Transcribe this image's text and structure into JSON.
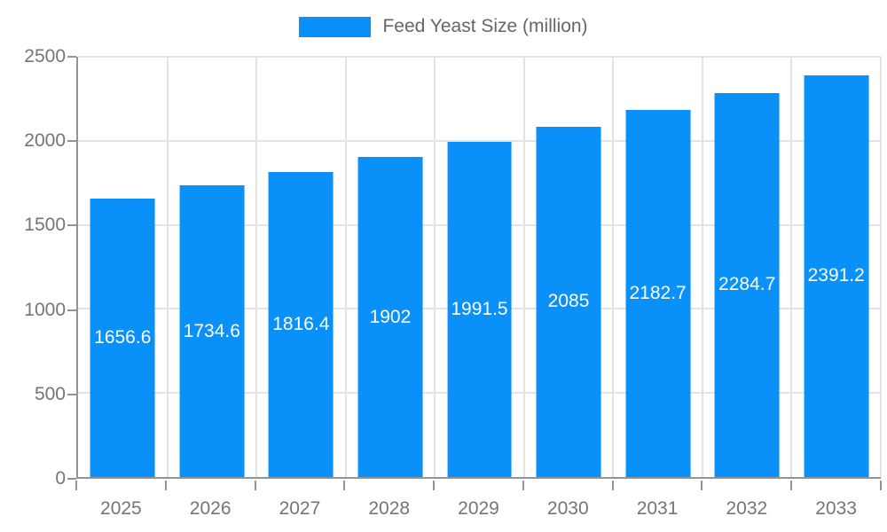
{
  "legend": {
    "label": "Feed Yeast Size (million)"
  },
  "chart_data": {
    "type": "bar",
    "title": "",
    "xlabel": "",
    "ylabel": "",
    "categories": [
      "2025",
      "2026",
      "2027",
      "2028",
      "2029",
      "2030",
      "2031",
      "2032",
      "2033"
    ],
    "series": [
      {
        "name": "Feed Yeast Size (million)",
        "values": [
          1656.6,
          1734.6,
          1816.4,
          1902,
          1991.5,
          2085,
          2182.7,
          2284.7,
          2391.2
        ]
      }
    ],
    "ylim": [
      0,
      2500
    ],
    "yticks": [
      0,
      500,
      1000,
      1500,
      2000,
      2500
    ],
    "grid": true,
    "legend_position": "top",
    "bar_labels_inside": true,
    "colors": {
      "bar": "#0a90f9",
      "gridline": "#e3e3e3",
      "axis_line": "#949494",
      "tick_label": "#757575",
      "legend_text": "#666666",
      "bar_label": "#ffffff"
    }
  }
}
